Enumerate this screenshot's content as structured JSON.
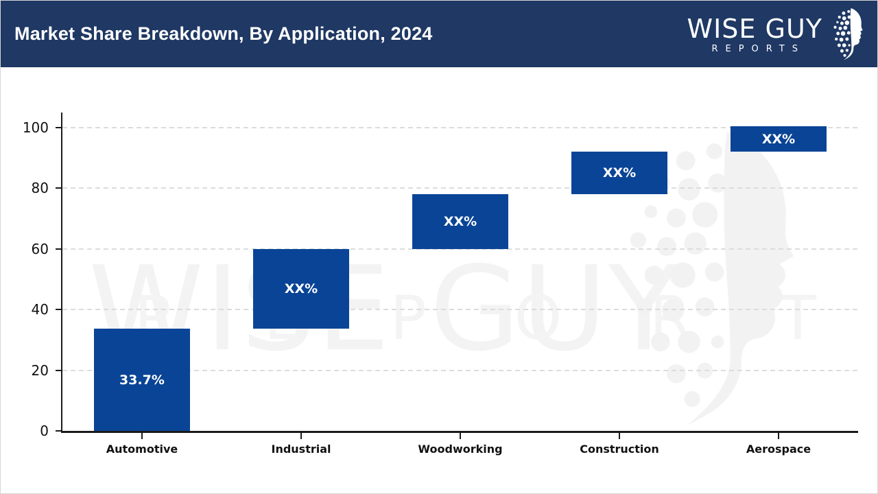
{
  "header": {
    "title": "Market Share Breakdown, By Application, 2024",
    "background_color": "#1f3864",
    "logo": {
      "primary_text": "WISE GUY",
      "secondary_text": "REPORTS",
      "face_icon": "dotted-head-profile-icon"
    }
  },
  "watermark": {
    "primary_text": "WISE GUY",
    "secondary_text": "R E P O R T S",
    "face_icon": "dotted-head-profile-icon"
  },
  "chart_data": {
    "type": "bar",
    "subtype": "waterfall-stacked-percent",
    "title": "Market Share Breakdown, By Application, 2024",
    "categories": [
      "Automotive",
      "Industrial",
      "Woodworking",
      "Construction",
      "Aerospace"
    ],
    "segments": [
      {
        "category": "Automotive",
        "start": 0,
        "end": 33.7,
        "label": "33.7%"
      },
      {
        "category": "Industrial",
        "start": 33.7,
        "end": 60,
        "label": "XX%"
      },
      {
        "category": "Woodworking",
        "start": 60,
        "end": 78,
        "label": "XX%"
      },
      {
        "category": "Construction",
        "start": 78,
        "end": 92,
        "label": "XX%"
      },
      {
        "category": "Aerospace",
        "start": 92,
        "end": 100.5,
        "label": "XX%"
      }
    ],
    "xlabel": "",
    "ylabel": "",
    "ylim": [
      0,
      105
    ],
    "yticks": [
      0,
      20,
      40,
      60,
      80,
      100
    ],
    "grid": {
      "horizontal": true,
      "style": "dashed",
      "color": "#dcdcdc"
    },
    "legend": "none",
    "bar_color": "#0a4496",
    "bar_label_color": "#ffffff",
    "axis_color": "#1a1a1a"
  }
}
